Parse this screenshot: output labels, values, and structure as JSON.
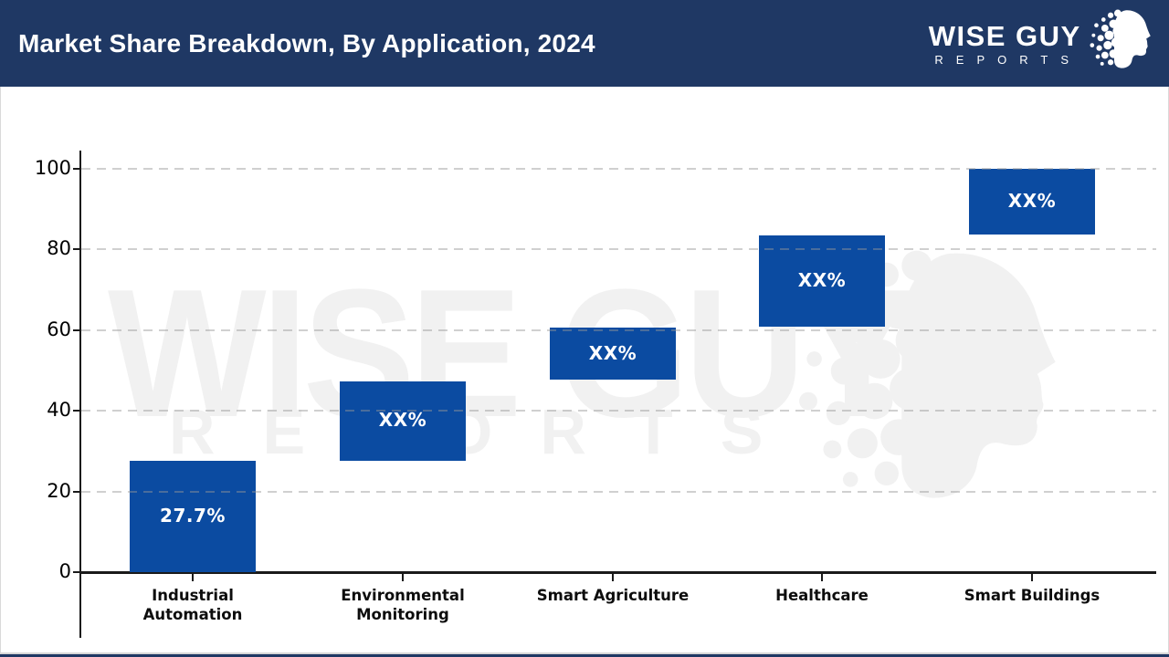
{
  "header": {
    "title": "Market Share Breakdown, By Application, 2024",
    "logo": {
      "name_top": "WISE GUY",
      "name_bottom": "REPORTS"
    }
  },
  "watermark": {
    "line1": "WISE GUY",
    "line2": "REPORTS"
  },
  "colors": {
    "header_bg": "#1f3864",
    "bar": "#0b4ba1",
    "axis": "#1a1a1a",
    "gridline_dash": "#d9d9d9",
    "bar_label_text": "#ffffff",
    "watermark": "#f1f1f1"
  },
  "chart_data": {
    "type": "bar",
    "subtype": "waterfall",
    "title": "Market Share Breakdown, By Application, 2024",
    "categories": [
      "Industrial Automation",
      "Environmental Monitoring",
      "Smart Agriculture",
      "Healthcare",
      "Smart Buildings"
    ],
    "segments": [
      {
        "category": "Industrial Automation",
        "label_lines": [
          "Industrial",
          "Automation"
        ],
        "start": 0,
        "end": 27.7,
        "value_label": "27.7%"
      },
      {
        "category": "Environmental Monitoring",
        "label_lines": [
          "Environmental",
          "Monitoring"
        ],
        "start": 27.7,
        "end": 47.3,
        "value_label": "XX%"
      },
      {
        "category": "Smart Agriculture",
        "label_lines": [
          "Smart Agriculture"
        ],
        "start": 47.7,
        "end": 60.6,
        "value_label": "XX%"
      },
      {
        "category": "Healthcare",
        "label_lines": [
          "Healthcare"
        ],
        "start": 60.8,
        "end": 83.5,
        "value_label": "XX%"
      },
      {
        "category": "Smart Buildings",
        "label_lines": [
          "Smart Buildings"
        ],
        "start": 83.7,
        "end": 100,
        "value_label": "XX%"
      }
    ],
    "yticks": [
      0,
      20,
      40,
      60,
      80,
      100
    ],
    "ylim": [
      0,
      104
    ],
    "xlabel": "",
    "ylabel": "",
    "grid": "horizontal-dashed",
    "legend": "none"
  }
}
